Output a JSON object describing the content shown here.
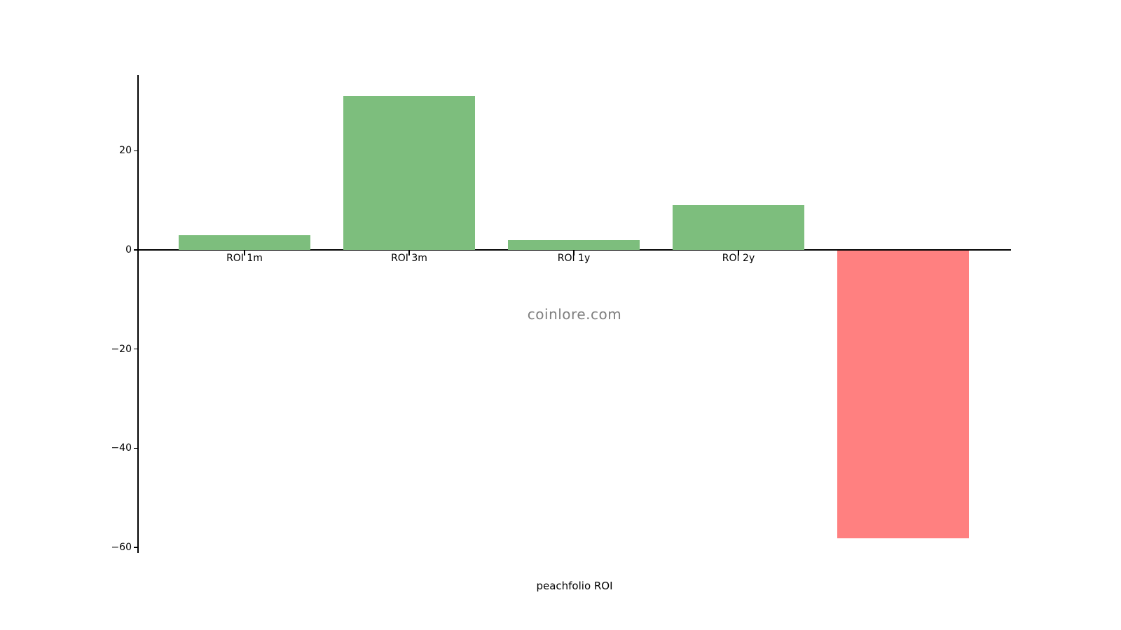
{
  "chart_data": {
    "type": "bar",
    "title": "",
    "xlabel": "peachfolio ROI",
    "ylabel": "",
    "watermark": "coinlore.com",
    "categories": [
      "ROI 1m",
      "ROI 3m",
      "ROI 1y",
      "ROI 2y",
      ""
    ],
    "values": [
      3,
      31,
      2,
      9,
      -58
    ],
    "bar_colors": [
      "#7DBE7D",
      "#7DBE7D",
      "#7DBE7D",
      "#7DBE7D",
      "#FF8080"
    ],
    "yticks": [
      {
        "value": 20,
        "label": "20"
      },
      {
        "value": 0,
        "label": "0"
      },
      {
        "value": -20,
        "label": "−20"
      },
      {
        "value": -40,
        "label": "−40"
      },
      {
        "value": -60,
        "label": "−60"
      }
    ],
    "ylim": [
      -61,
      35
    ],
    "grid": false,
    "legend": null,
    "colors": {
      "positive": "#7DBE7D",
      "negative": "#FF8080",
      "axis": "#000000",
      "watermark": "#7f7f7f"
    }
  }
}
